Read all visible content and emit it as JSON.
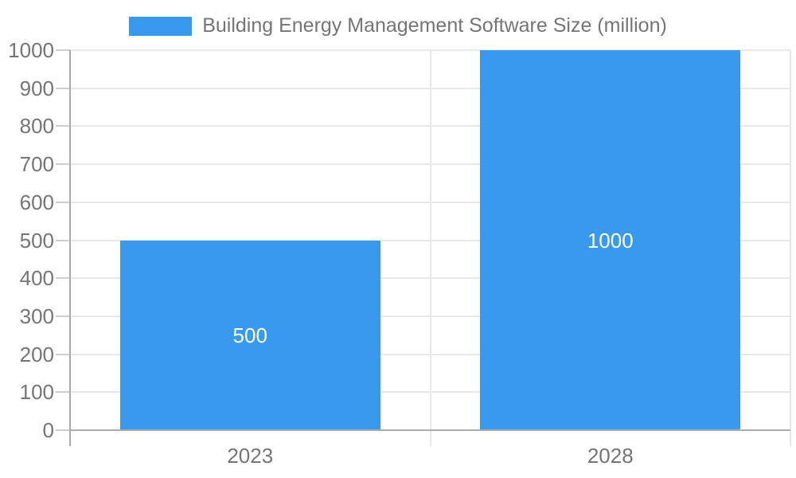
{
  "chart_data": {
    "type": "bar",
    "title": "Building Energy Management Software Size (million)",
    "legend": {
      "label": "Building Energy Management Software Size (million)",
      "position": "top"
    },
    "categories": [
      "2023",
      "2028"
    ],
    "values": [
      500,
      1000
    ],
    "bar_labels": [
      "500",
      "1000"
    ],
    "xlabel": "",
    "ylabel": "",
    "ylim": [
      0,
      1000
    ],
    "yticks": [
      0,
      100,
      200,
      300,
      400,
      500,
      600,
      700,
      800,
      900,
      1000
    ],
    "grid": true,
    "colors": {
      "bar": "#3999ED",
      "axis": "#ABABAB",
      "grid": "#E8E8E8",
      "tick": "#CFCFCF",
      "text": "#757575",
      "bar_text": "#FFFFFF",
      "bg": "#FFFFFF"
    }
  }
}
